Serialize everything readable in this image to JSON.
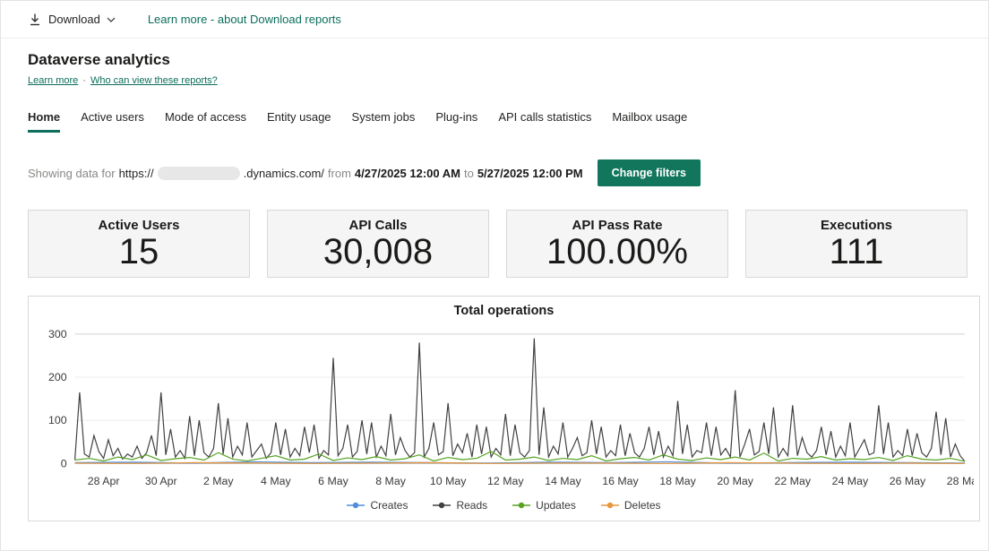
{
  "colors": {
    "accent": "#0c6e5c",
    "button": "#11765c",
    "creates": "#4f8edc",
    "reads": "#404040",
    "updates": "#56a322",
    "deletes": "#e8973c"
  },
  "topbar": {
    "download_label": "Download",
    "learn_more_link": "Learn more - about Download reports"
  },
  "header": {
    "title": "Dataverse analytics",
    "learn_more": "Learn more",
    "separator": "·",
    "who_can_view": "Who can view these reports?"
  },
  "tabs": [
    {
      "label": "Home",
      "active": true
    },
    {
      "label": "Active users",
      "active": false
    },
    {
      "label": "Mode of access",
      "active": false
    },
    {
      "label": "Entity usage",
      "active": false
    },
    {
      "label": "System jobs",
      "active": false
    },
    {
      "label": "Plug-ins",
      "active": false
    },
    {
      "label": "API calls statistics",
      "active": false
    },
    {
      "label": "Mailbox usage",
      "active": false
    }
  ],
  "filters": {
    "prefix": "Showing data for",
    "url_prefix": "https://",
    "url_suffix": ".dynamics.com/",
    "from_label": "from",
    "from_value": "4/27/2025 12:00 AM",
    "to_label": "to",
    "to_value": "5/27/2025 12:00 PM",
    "button_label": "Change filters"
  },
  "cards": [
    {
      "title": "Active Users",
      "value": "15"
    },
    {
      "title": "API Calls",
      "value": "30,008"
    },
    {
      "title": "API Pass Rate",
      "value": "100.00%"
    },
    {
      "title": "Executions",
      "value": "111"
    }
  ],
  "chart_data": {
    "type": "line",
    "title": "Total operations",
    "ylim": [
      0,
      300
    ],
    "yticks": [
      0,
      100,
      200,
      300
    ],
    "x_range_days": [
      0,
      31
    ],
    "x_ticks": [
      {
        "day": 1,
        "label": "28 Apr"
      },
      {
        "day": 3,
        "label": "30 Apr"
      },
      {
        "day": 5,
        "label": "2 May"
      },
      {
        "day": 7,
        "label": "4 May"
      },
      {
        "day": 9,
        "label": "6 May"
      },
      {
        "day": 11,
        "label": "8 May"
      },
      {
        "day": 13,
        "label": "10 May"
      },
      {
        "day": 15,
        "label": "12 May"
      },
      {
        "day": 17,
        "label": "14 May"
      },
      {
        "day": 19,
        "label": "16 May"
      },
      {
        "day": 21,
        "label": "18 May"
      },
      {
        "day": 23,
        "label": "20 May"
      },
      {
        "day": 25,
        "label": "22 May"
      },
      {
        "day": 27,
        "label": "24 May"
      },
      {
        "day": 29,
        "label": "26 May"
      },
      {
        "day": 31,
        "label": "28 May"
      }
    ],
    "legend_position": "bottom",
    "series": [
      {
        "name": "Creates",
        "color": "#4f8edc",
        "values": [
          2,
          3,
          1,
          4,
          2,
          3,
          2,
          1,
          3,
          2,
          4,
          1,
          2,
          3,
          2,
          1
        ]
      },
      {
        "name": "Reads",
        "color": "#404040",
        "values": [
          8,
          165,
          22,
          15,
          65,
          28,
          12,
          55,
          18,
          35,
          10,
          22,
          15,
          40,
          12,
          25,
          65,
          18,
          165,
          20,
          80,
          15,
          30,
          12,
          110,
          18,
          100,
          25,
          15,
          35,
          140,
          22,
          105,
          15,
          40,
          20,
          95,
          15,
          30,
          45,
          12,
          25,
          95,
          20,
          80,
          15,
          35,
          18,
          85,
          25,
          90,
          12,
          30,
          20,
          245,
          18,
          35,
          90,
          15,
          28,
          100,
          22,
          95,
          15,
          40,
          18,
          115,
          20,
          60,
          30,
          15,
          25,
          280,
          15,
          35,
          95,
          20,
          28,
          140,
          18,
          45,
          25,
          70,
          15,
          90,
          22,
          85,
          15,
          35,
          20,
          115,
          18,
          90,
          25,
          15,
          30,
          290,
          20,
          130,
          15,
          40,
          22,
          95,
          15,
          35,
          60,
          18,
          25,
          100,
          22,
          85,
          15,
          30,
          18,
          90,
          18,
          70,
          25,
          15,
          35,
          85,
          20,
          75,
          15,
          40,
          18,
          145,
          22,
          90,
          15,
          30,
          25,
          95,
          18,
          85,
          20,
          35,
          15,
          170,
          15,
          45,
          80,
          20,
          28,
          95,
          22,
          130,
          15,
          35,
          18,
          135,
          18,
          60,
          25,
          15,
          30,
          85,
          20,
          75,
          15,
          40,
          18,
          95,
          15,
          35,
          55,
          20,
          25,
          135,
          22,
          95,
          15,
          30,
          18,
          80,
          18,
          70,
          25,
          15,
          35,
          120,
          20,
          105,
          15,
          45,
          18,
          5
        ]
      },
      {
        "name": "Updates",
        "color": "#56a322",
        "values": [
          8,
          12,
          6,
          15,
          9,
          20,
          7,
          11,
          14,
          8,
          25,
          10,
          6,
          12,
          18,
          8,
          10,
          22,
          7,
          13,
          9,
          16,
          8,
          11,
          20,
          6,
          14,
          9,
          12,
          28,
          8,
          10,
          15,
          7,
          12,
          9,
          18,
          6,
          11,
          14,
          8,
          20,
          10,
          7,
          13,
          9,
          15,
          8,
          24,
          6,
          12,
          10,
          16,
          8,
          11,
          9,
          14,
          7,
          18,
          10,
          8,
          12,
          5
        ]
      },
      {
        "name": "Deletes",
        "color": "#e8973c",
        "values": [
          1,
          0,
          2,
          1,
          0,
          1,
          2,
          0,
          1,
          1,
          0,
          2,
          1,
          0,
          1,
          0
        ]
      }
    ]
  }
}
